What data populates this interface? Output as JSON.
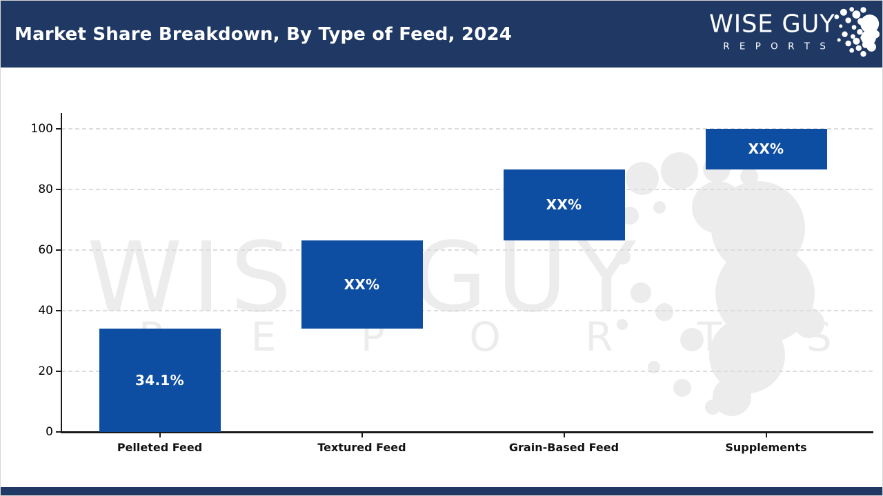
{
  "page": {
    "background": "#ffffff",
    "border_color": "#d6d6d6"
  },
  "header": {
    "bg_color": "#1f3864",
    "title": "Market Share Breakdown, By Type of Feed, 2024",
    "logo_line1": "WISE GUY",
    "logo_line2": "R E P O R T S"
  },
  "watermark": {
    "line1": "WISE GUY",
    "line2": "R E P O R T S",
    "color": "#ececec"
  },
  "footer": {
    "bg_color": "#1f3864"
  },
  "chart_data": {
    "type": "bar",
    "subtype": "waterfall",
    "title": "Market Share Breakdown, By Type of Feed, 2024",
    "categories": [
      "Pelleted Feed",
      "Textured Feed",
      "Grain-Based Feed",
      "Supplements"
    ],
    "series": [
      {
        "name": "Market share (%)",
        "segments": [
          {
            "category": "Pelleted Feed",
            "start": 0,
            "end": 34.1,
            "label": "34.1%"
          },
          {
            "category": "Textured Feed",
            "start": 34.1,
            "end": 63.2,
            "label": "XX%"
          },
          {
            "category": "Grain-Based Feed",
            "start": 63.2,
            "end": 86.6,
            "label": "XX%"
          },
          {
            "category": "Supplements",
            "start": 86.6,
            "end": 100,
            "label": "XX%"
          }
        ]
      }
    ],
    "xlabel": "",
    "ylabel": "",
    "ylim": [
      0,
      100
    ],
    "yticks": [
      0,
      20,
      40,
      60,
      80,
      100
    ],
    "ytick_labels": [
      "0",
      "20",
      "40",
      "60",
      "80",
      "100"
    ],
    "grid": "horizontal dashed",
    "legend_position": "none",
    "bar_color": "#0d4da2",
    "bar_label_color": "#ffffff",
    "axis_color": "#1a1a1a",
    "grid_color": "#dcdcdc",
    "tick_label_color": "#000000"
  }
}
